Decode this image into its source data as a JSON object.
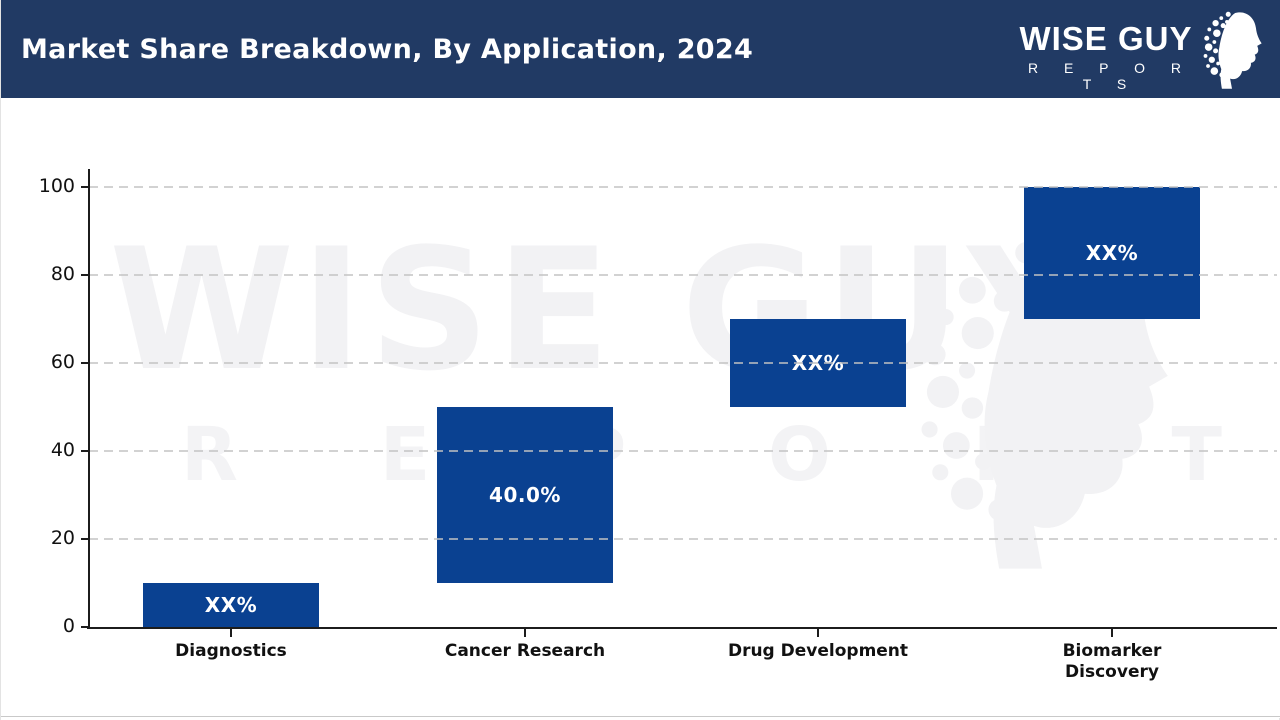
{
  "header": {
    "title": "Market Share Breakdown, By Application, 2024",
    "logo": {
      "name": "WISE GUY",
      "sub": "R E P O R T S"
    }
  },
  "watermark": {
    "name": "WISE GUY",
    "sub": "R E P O R T S"
  },
  "colors": {
    "header_bg": "#213a64",
    "bar": "#0a4191",
    "grid": "#c3c3c3",
    "axis": "#1c1c1c",
    "watermark": "#f2f2f4"
  },
  "chart_data": {
    "type": "bar",
    "subtype": "waterfall",
    "title": "Market Share Breakdown, By Application, 2024",
    "categories": [
      "Diagnostics",
      "Cancer Research",
      "Drug Development",
      "Biomarker\nDiscovery"
    ],
    "bars": [
      {
        "category": "Diagnostics",
        "start": 0,
        "end": 10,
        "label": "XX%"
      },
      {
        "category": "Cancer Research",
        "start": 10,
        "end": 50,
        "label": "40.0%"
      },
      {
        "category": "Drug Development",
        "start": 50,
        "end": 70,
        "label": "XX%"
      },
      {
        "category": "Biomarker\nDiscovery",
        "start": 70,
        "end": 100,
        "label": "XX%"
      }
    ],
    "xlabel": "",
    "ylabel": "",
    "ylim": [
      0,
      100
    ],
    "yticks": [
      0,
      20,
      40,
      60,
      80,
      100
    ],
    "grid": "horizontal-dashed",
    "legend": "none"
  }
}
